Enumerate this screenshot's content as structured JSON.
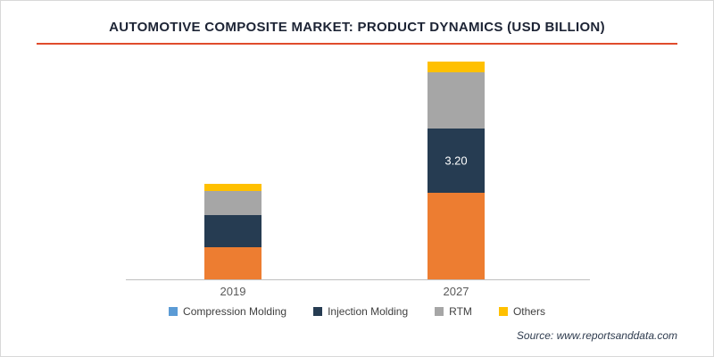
{
  "header": {
    "underline_color": "#e04b2c"
  },
  "chart_data": {
    "type": "bar",
    "stacked": true,
    "title": "AUTOMOTIVE COMPOSITE MARKET: PRODUCT DYNAMICS (USD BILLION)",
    "categories": [
      "2019",
      "2027"
    ],
    "series": [
      {
        "name": "Compression Molding",
        "color": "#ED7D31",
        "legend_color": "#5B9BD5",
        "values": [
          1.6,
          4.3
        ]
      },
      {
        "name": "Injection Molding",
        "color": "#263C52",
        "legend_color": "#263C52",
        "values": [
          1.6,
          3.2
        ]
      },
      {
        "name": "RTM",
        "color": "#A6A6A6",
        "legend_color": "#A6A6A6",
        "values": [
          1.2,
          2.8
        ]
      },
      {
        "name": "Others",
        "color": "#FFC000",
        "legend_color": "#FFC000",
        "values": [
          0.35,
          0.55
        ]
      }
    ],
    "data_labels": [
      {
        "category": "2027",
        "series": "Injection Molding",
        "text": "3.20"
      }
    ],
    "legend_position": "bottom",
    "grid": false,
    "baseline_color": "#BFBFBF",
    "ylim": [
      0,
      11.2
    ]
  },
  "footer": {
    "source": "Source: www.reportsanddata.com"
  }
}
